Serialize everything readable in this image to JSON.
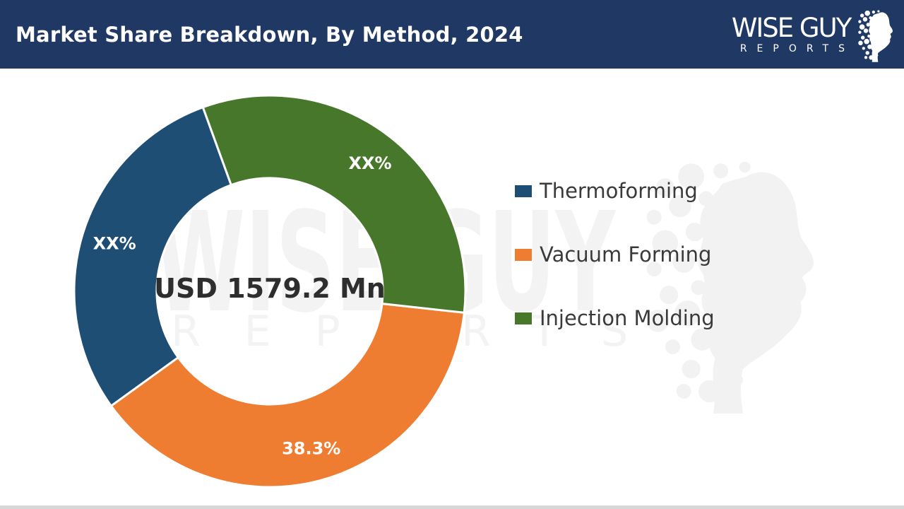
{
  "header": {
    "title": "Market Share Breakdown, By Method, 2024",
    "logo": {
      "name": "WISE GUY",
      "tagline": "REPORTS"
    }
  },
  "watermark": {
    "line1": "WISE GUY",
    "line2": "REPORTS"
  },
  "chart_data": {
    "type": "pie",
    "subtype": "donut",
    "title": "Market Share Breakdown, By Method, 2024",
    "center_label": "USD 1579.2 Mn",
    "units": "percent of market share",
    "start_angle_deg": 110,
    "direction": "counterclockwise",
    "legend_position": "right",
    "series": [
      {
        "name": "Thermoforming",
        "value": 29.4,
        "display_label": "XX%",
        "color": "#1F4E74"
      },
      {
        "name": "Vacuum Forming",
        "value": 38.3,
        "display_label": "38.3%",
        "color": "#EE7D31"
      },
      {
        "name": "Injection Molding",
        "value": 32.3,
        "display_label": "XX%",
        "color": "#47772A"
      }
    ]
  },
  "colors": {
    "header_bg": "#1F3864",
    "page_bg": "#FFFFFF",
    "watermark": "#F2F2F2",
    "center_text": "#2E2E2E",
    "segment_label_text": "#FFFFFF",
    "legend_text": "#3A3A3A",
    "bottom_border": "#D7D7D7"
  }
}
